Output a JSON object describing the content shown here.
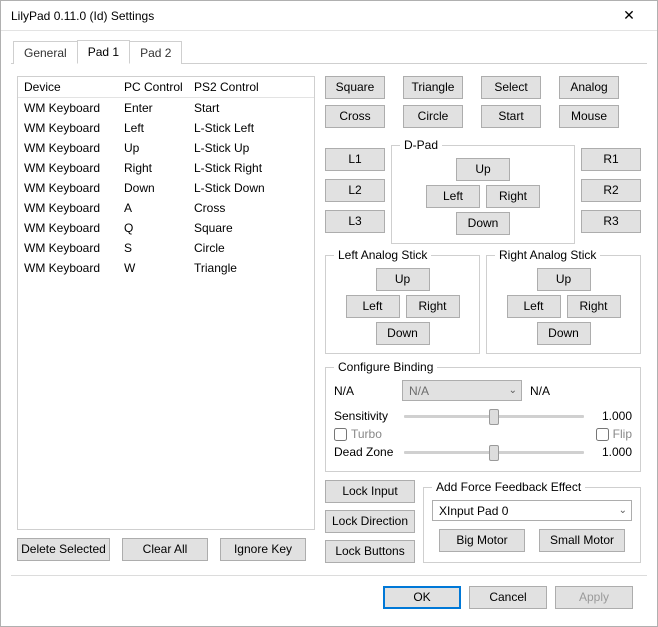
{
  "window": {
    "title": "LilyPad 0.11.0 (Id) Settings",
    "close_glyph": "✕"
  },
  "tabs": {
    "general": "General",
    "pad1": "Pad 1",
    "pad2": "Pad 2",
    "active": "pad1"
  },
  "bindings": {
    "headers": {
      "device": "Device",
      "pc": "PC Control",
      "ps2": "PS2 Control"
    },
    "rows": [
      {
        "device": "WM Keyboard",
        "pc": "Enter",
        "ps2": "Start"
      },
      {
        "device": "WM Keyboard",
        "pc": "Left",
        "ps2": "L-Stick Left"
      },
      {
        "device": "WM Keyboard",
        "pc": "Up",
        "ps2": "L-Stick Up"
      },
      {
        "device": "WM Keyboard",
        "pc": "Right",
        "ps2": "L-Stick Right"
      },
      {
        "device": "WM Keyboard",
        "pc": "Down",
        "ps2": "L-Stick Down"
      },
      {
        "device": "WM Keyboard",
        "pc": "A",
        "ps2": "Cross"
      },
      {
        "device": "WM Keyboard",
        "pc": "Q",
        "ps2": "Square"
      },
      {
        "device": "WM Keyboard",
        "pc": "S",
        "ps2": "Circle"
      },
      {
        "device": "WM Keyboard",
        "pc": "W",
        "ps2": "Triangle"
      }
    ]
  },
  "left_actions": {
    "delete": "Delete Selected",
    "clear": "Clear All",
    "ignore": "Ignore Key"
  },
  "face": {
    "square": "Square",
    "triangle": "Triangle",
    "select": "Select",
    "analog": "Analog",
    "cross": "Cross",
    "circle": "Circle",
    "start": "Start",
    "mouse": "Mouse"
  },
  "shoulders": {
    "l1": "L1",
    "l2": "L2",
    "l3": "L3",
    "r1": "R1",
    "r2": "R2",
    "r3": "R3"
  },
  "dpad": {
    "legend": "D-Pad",
    "up": "Up",
    "down": "Down",
    "left": "Left",
    "right": "Right"
  },
  "lstick": {
    "legend": "Left Analog Stick",
    "up": "Up",
    "down": "Down",
    "left": "Left",
    "right": "Right"
  },
  "rstick": {
    "legend": "Right Analog Stick",
    "up": "Up",
    "down": "Down",
    "left": "Left",
    "right": "Right"
  },
  "configure": {
    "legend": "Configure Binding",
    "na_a": "N/A",
    "combo_value": "N/A",
    "na_b": "N/A",
    "sens_label": "Sensitivity",
    "sens_value": "1.000",
    "sens_thumb_pct": 50,
    "turbo_label": "Turbo",
    "flip_label": "Flip",
    "dz_label": "Dead Zone",
    "dz_value": "1.000",
    "dz_thumb_pct": 50
  },
  "locks": {
    "input": "Lock Input",
    "direction": "Lock Direction",
    "buttons": "Lock Buttons"
  },
  "ffe": {
    "legend": "Add Force Feedback Effect",
    "device": "XInput Pad 0",
    "big": "Big Motor",
    "small": "Small Motor"
  },
  "dialog": {
    "ok": "OK",
    "cancel": "Cancel",
    "apply": "Apply"
  },
  "style": {
    "button_bg": "#e1e1e1",
    "button_border": "#adadad",
    "group_border": "#cfcfcf",
    "primary_outline": "#0078d7",
    "disabled_text": "#9a9a9a"
  }
}
